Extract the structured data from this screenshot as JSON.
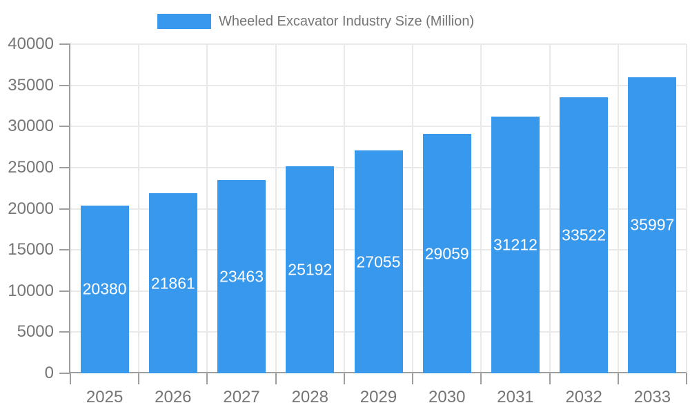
{
  "legend": {
    "label": "Wheeled Excavator Industry Size (Million)"
  },
  "colors": {
    "background": "#ffffff",
    "bar": "#3899ec",
    "axis": "#9e9e9e",
    "grid": "#e9e9e9",
    "tick_text": "#757575",
    "legend_text": "#757575",
    "value_text": "#ffffff"
  },
  "chart_data": {
    "type": "bar",
    "title": "Wheeled Excavator Industry Size (Million)",
    "categories": [
      "2025",
      "2026",
      "2027",
      "2028",
      "2029",
      "2030",
      "2031",
      "2032",
      "2033"
    ],
    "values": [
      20380,
      21861,
      23463,
      25192,
      27055,
      29059,
      31212,
      33522,
      35997
    ],
    "xlabel": "",
    "ylabel": "",
    "ylim": [
      0,
      40000
    ],
    "yticks": [
      0,
      5000,
      10000,
      15000,
      20000,
      25000,
      30000,
      35000,
      40000
    ],
    "grid": true,
    "legend_position": "top",
    "value_labels": "inside-center"
  }
}
